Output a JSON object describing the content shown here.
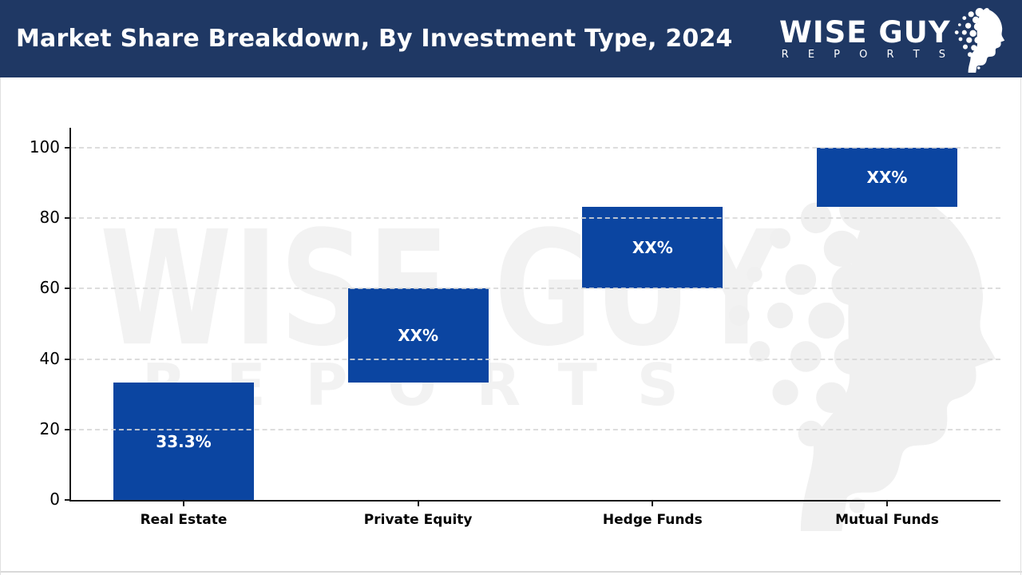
{
  "header": {
    "title": "Market Share Breakdown, By Investment Type, 2024",
    "bg_color": "#1f3864",
    "logo": {
      "line1": "WISE GUY",
      "line2": "R E P O R T S",
      "icon": "dotted-head-profile-icon"
    }
  },
  "watermark": {
    "line1": "WISE GUY",
    "line2": "REPORTS",
    "icon": "dotted-head-profile-icon"
  },
  "colors": {
    "header_bg": "#1f3864",
    "bar_fill": "#0b45a1",
    "bar_label": "#ffffff",
    "axis": "#1a1a1a",
    "gridline": "#d7d7d7",
    "watermark": "#f2f2f2"
  },
  "chart_data": {
    "type": "bar",
    "subtype": "floating-waterfall",
    "title": "Market Share Breakdown, By Investment Type, 2024",
    "categories": [
      "Real Estate",
      "Private Equity",
      "Hedge Funds",
      "Mutual Funds"
    ],
    "series": [
      {
        "name": "Market Share",
        "base_values": [
          0,
          33.3,
          60,
          83.3
        ],
        "top_values": [
          33.3,
          60,
          83.3,
          100
        ]
      }
    ],
    "bar_labels": [
      "33.3%",
      "XX%",
      "XX%",
      "XX%"
    ],
    "xlabel": "",
    "ylabel": "",
    "yticks": [
      0,
      20,
      40,
      60,
      80,
      100
    ],
    "ylim": [
      0,
      105
    ],
    "grid": "horizontal-dashed",
    "legend": "none"
  }
}
